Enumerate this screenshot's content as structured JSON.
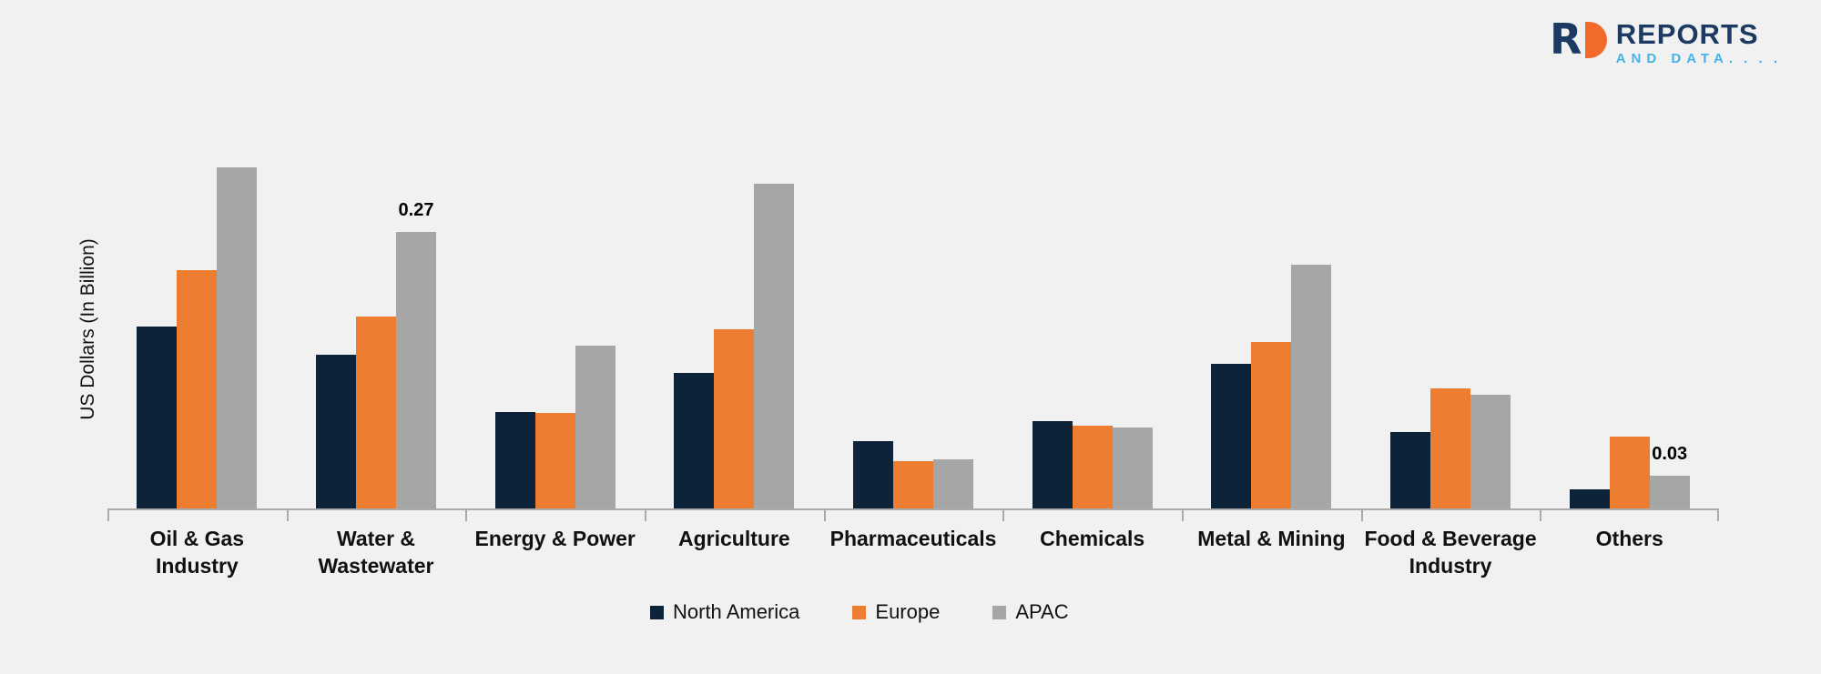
{
  "page": {
    "background": "#f1f1f2"
  },
  "logo": {
    "mark_r": "R",
    "mark_d": "D",
    "title": "REPORTS",
    "subtitle": "AND DATA",
    "dots": ". . . .",
    "colors": {
      "navy": "#1d3a63",
      "orange": "#f26a2a",
      "light_blue": "#45b1e8"
    }
  },
  "chart_data": {
    "type": "bar",
    "title": "",
    "xlabel": "",
    "ylabel": "US Dollars  (In Billion)",
    "categories": [
      "Oil & Gas Industry",
      "Water &\nWastewater",
      "Energy & Power",
      "Agriculture",
      "Pharmaceuticals",
      "Chemicals",
      "Metal & Mining",
      "Food & Beverage\nIndustry",
      "Others"
    ],
    "series": [
      {
        "name": "North America",
        "color": "#0d2339",
        "values": [
          0.178,
          0.15,
          0.094,
          0.132,
          0.066,
          0.085,
          0.141,
          0.075,
          0.019
        ]
      },
      {
        "name": "Europe",
        "color": "#ed7d31",
        "values": [
          0.233,
          0.187,
          0.093,
          0.175,
          0.046,
          0.081,
          0.163,
          0.117,
          0.07
        ]
      },
      {
        "name": "APAC",
        "color": "#a6a6a6",
        "values": [
          0.333,
          0.27,
          0.159,
          0.317,
          0.048,
          0.079,
          0.238,
          0.111,
          0.032
        ]
      }
    ],
    "data_labels": [
      {
        "series_index": 2,
        "category_index": 1,
        "text": "0.27"
      },
      {
        "series_index": 2,
        "category_index": 8,
        "text": "0.03"
      }
    ],
    "ylim": [
      0,
      0.35
    ],
    "grid": false,
    "y_tick_labels_shown": false,
    "legend_position": "bottom",
    "axis_color": "#ababab"
  }
}
